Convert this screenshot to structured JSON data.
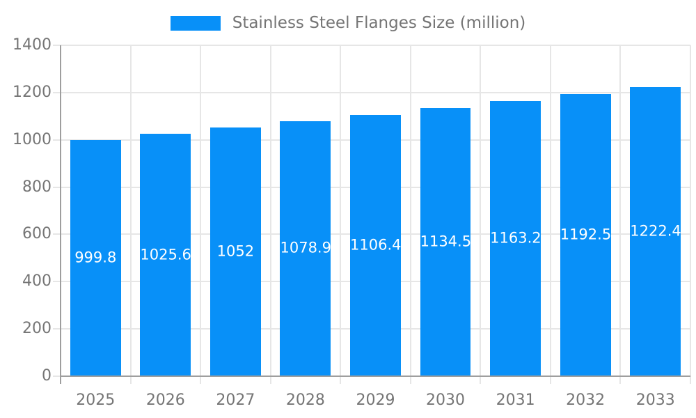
{
  "legend": {
    "label": "Stainless Steel Flanges Size (million)"
  },
  "chart_data": {
    "type": "bar",
    "title": "Stainless Steel Flanges Size (million)",
    "categories": [
      "2025",
      "2026",
      "2027",
      "2028",
      "2029",
      "2030",
      "2031",
      "2032",
      "2033"
    ],
    "values": [
      999.8,
      1025.6,
      1052,
      1078.9,
      1106.4,
      1134.5,
      1163.2,
      1192.5,
      1222.4
    ],
    "value_labels": [
      "999.8",
      "1025.6",
      "1052",
      "1078.9",
      "1106.4",
      "1134.5",
      "1163.2",
      "1192.5",
      "1222.4"
    ],
    "xlabel": "",
    "ylabel": "",
    "ylim": [
      0,
      1400
    ],
    "yticks": [
      0,
      200,
      400,
      600,
      800,
      1000,
      1200,
      1400
    ],
    "grid": true,
    "legend_position": "top-center",
    "colors": {
      "bar": "#0890F8",
      "value_label": "#FFFFFF",
      "axis_text": "#757575",
      "gridline": "#E6E6E6",
      "axis_line": "#9E9E9E",
      "background": "#FFFFFF"
    }
  }
}
